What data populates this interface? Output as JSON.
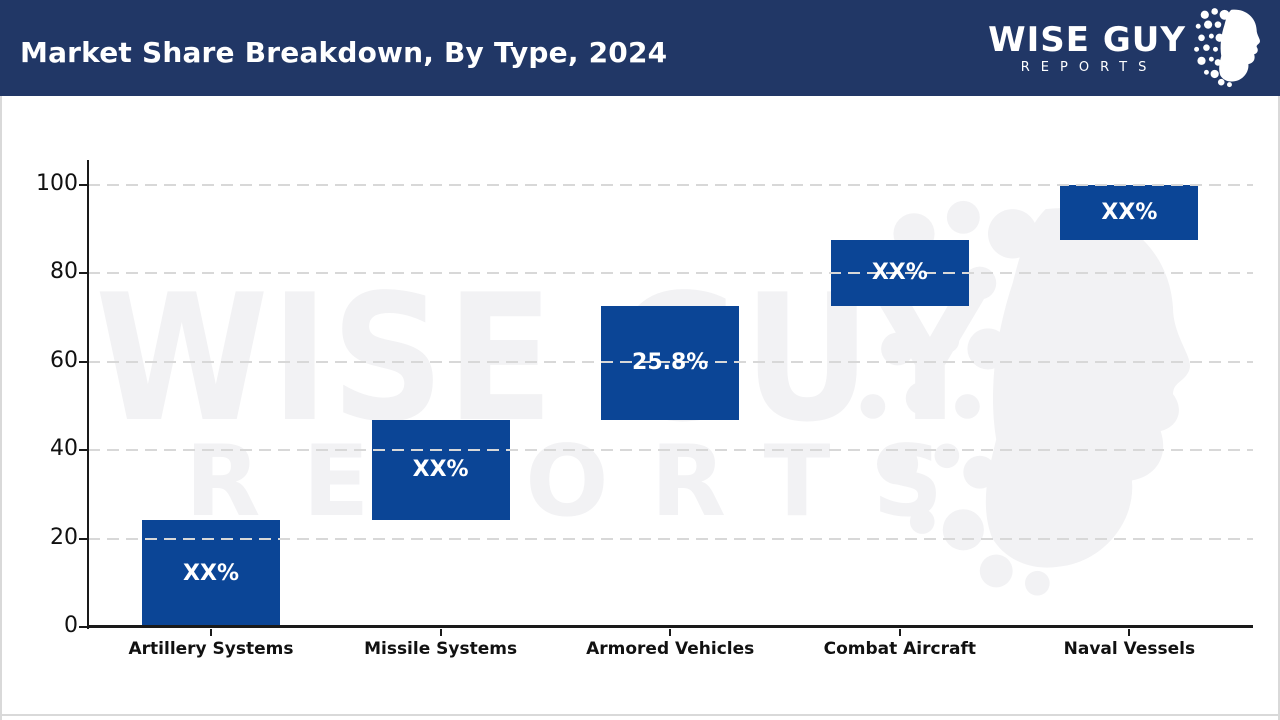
{
  "header": {
    "title": "Market Share Breakdown, By Type, 2024",
    "logo": {
      "name": "WISE GUY",
      "sub": "REPORTS"
    }
  },
  "watermark": {
    "name": "WISE GUY",
    "sub": "REPORTS"
  },
  "chart_data": {
    "type": "bar",
    "subtype": "floating-waterfall-bars",
    "title": "Market Share Breakdown, By Type, 2024",
    "categories": [
      "Artillery Systems",
      "Missile Systems",
      "Armored Vehicles",
      "Combat Aircraft",
      "Naval Vessels"
    ],
    "segments": [
      {
        "category": "Artillery Systems",
        "from": 0,
        "to": 24.3,
        "label": "XX%"
      },
      {
        "category": "Missile Systems",
        "from": 24.3,
        "to": 46.9,
        "label": "XX%"
      },
      {
        "category": "Armored Vehicles",
        "from": 46.9,
        "to": 72.7,
        "label": "25.8%"
      },
      {
        "category": "Combat Aircraft",
        "from": 72.7,
        "to": 87.6,
        "label": "XX%"
      },
      {
        "category": "Naval Vessels",
        "from": 87.6,
        "to": 100,
        "label": "XX%"
      }
    ],
    "ylim": [
      0,
      100
    ],
    "yticks": [
      0,
      20,
      40,
      60,
      80,
      100
    ],
    "xlabel": "",
    "ylabel": "",
    "grid": "horizontal-dashed",
    "legend": "none",
    "bar_color": "#0b4596"
  },
  "colors": {
    "header_bg": "#213766",
    "bar": "#0b4596",
    "grid": "#d8d8d8",
    "axis": "#1a1a1a",
    "watermark": "#f2f2f4",
    "border": "#d9d9d9"
  }
}
